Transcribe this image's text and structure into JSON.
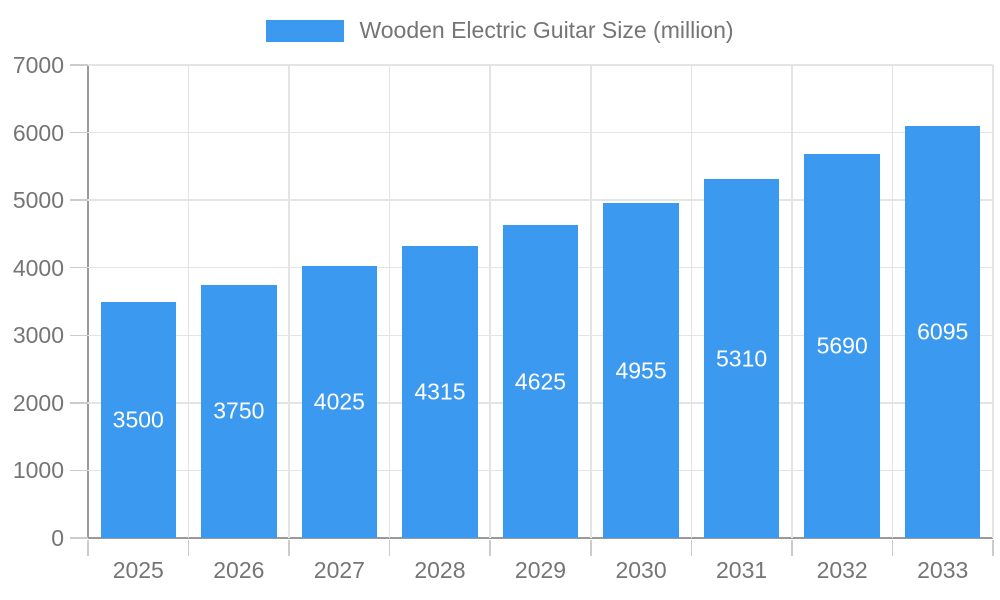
{
  "legend": {
    "label": "Wooden Electric Guitar Size (million)"
  },
  "chart_data": {
    "type": "bar",
    "title": "Wooden Electric Guitar Size (million)",
    "categories": [
      "2025",
      "2026",
      "2027",
      "2028",
      "2029",
      "2030",
      "2031",
      "2032",
      "2033"
    ],
    "series": [
      {
        "name": "Wooden Electric Guitar Size (million)",
        "values": [
          3500,
          3750,
          4025,
          4315,
          4625,
          4955,
          5310,
          5690,
          6095
        ]
      }
    ],
    "xlabel": "",
    "ylabel": "",
    "ylim": [
      0,
      7000
    ],
    "ytick_step": 1000,
    "grid": true,
    "legend_position": "top",
    "bar_value_labels": "inside-center"
  },
  "theme": {
    "bar_color": "#3B99F0",
    "grid_color": "#E4E4E4",
    "axis_color": "#9A9A9A",
    "tick_color": "#CCCCCC",
    "label_color": "#757575",
    "value_label_color": "#FFFFFF",
    "background_color": "#FFFFFF"
  }
}
